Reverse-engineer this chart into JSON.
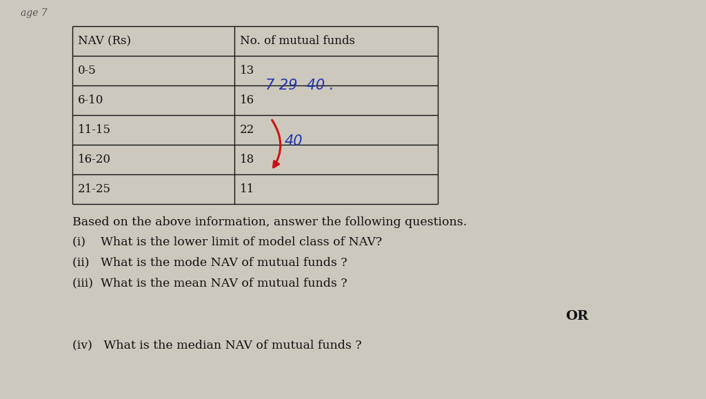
{
  "page_label": "age 7",
  "table_headers": [
    "NAV (Rs)",
    "No. of mutual funds"
  ],
  "table_rows": [
    [
      "0-5",
      "13"
    ],
    [
      "6-10",
      "16"
    ],
    [
      "11-15",
      "22"
    ],
    [
      "16-20",
      "18"
    ],
    [
      "21-25",
      "11"
    ]
  ],
  "handwritten_blue_1": "7 29  40 .",
  "handwritten_blue_2": "40",
  "questions_intro": "Based on the above information, answer the following questions.",
  "questions": [
    "(i)    What is the lower limit of model class of NAV?",
    "(ii)   What is the mode NAV of mutual funds ?",
    "(iii)  What is the mean NAV of mutual funds ?"
  ],
  "or_text": "OR",
  "question_iv": "(iv)   What is the median NAV of mutual funds ?",
  "bg_color": "#ccc8be",
  "text_color": "#111111",
  "table_line_color": "#111111",
  "header_font_size": 12,
  "body_font_size": 12,
  "question_font_size": 12.5
}
